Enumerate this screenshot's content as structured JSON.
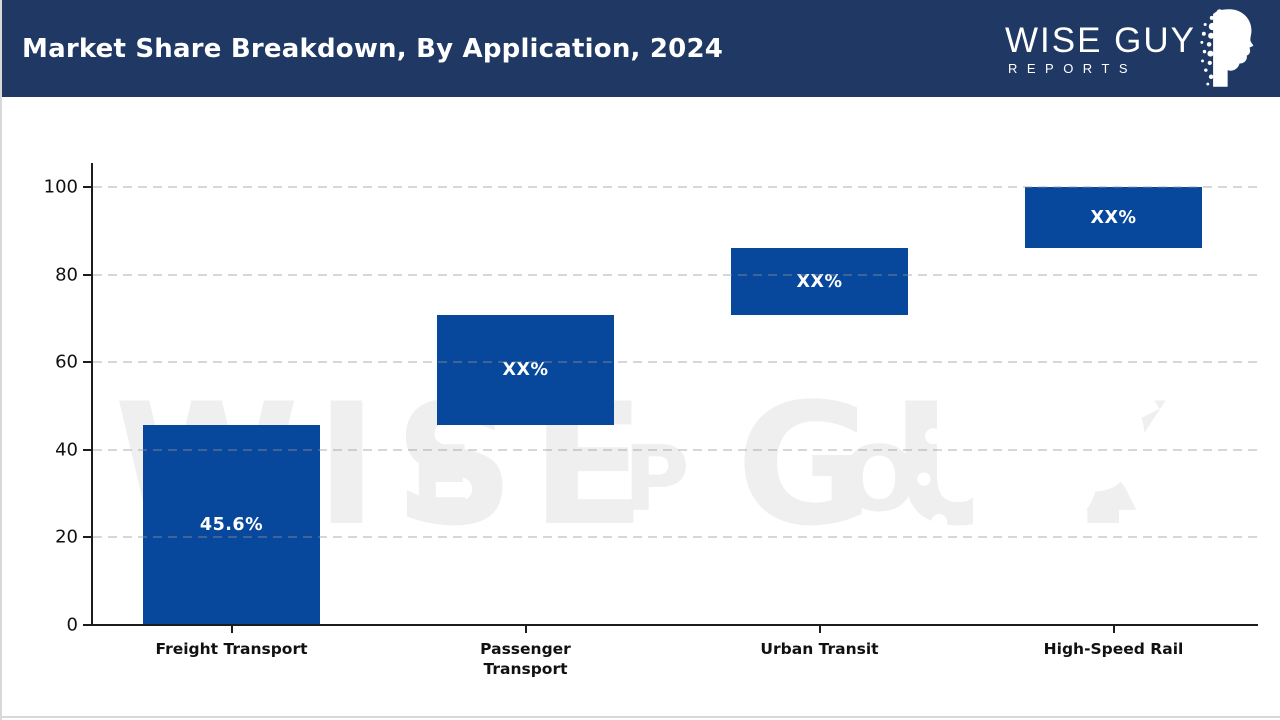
{
  "header": {
    "title": "Market Share Breakdown, By Application, 2024",
    "logo": {
      "line1": "WISE GUY",
      "line2": "REPORTS"
    }
  },
  "watermark": {
    "line1": "WISE GUY",
    "line2": "REPORTS",
    "face_icon": "dot-face-profile"
  },
  "colors": {
    "header_bg": "#1F3864",
    "bar_blue": "#07479C",
    "bar_label": "#FFFFFF",
    "axis": "#1C1C1C",
    "gridline_gray": "#D9D9D9",
    "watermark_gray": "#EFEFEF"
  },
  "chart_data": {
    "type": "bar",
    "subtype": "waterfall",
    "title": "Market Share Breakdown, By Application, 2024",
    "xlabel": "",
    "ylabel": "",
    "categories": [
      "Freight Transport",
      "Passenger Transport",
      "Urban Transit",
      "High-Speed Rail"
    ],
    "category_label_lines": [
      [
        "Freight Transport"
      ],
      [
        "Passenger",
        "Transport"
      ],
      [
        "Urban Transit"
      ],
      [
        "High-Speed Rail"
      ]
    ],
    "segments": [
      {
        "category": "Freight Transport",
        "start": 0,
        "end": 45.6,
        "label": "45.6%"
      },
      {
        "category": "Passenger Transport",
        "start": 45.6,
        "end": 70.7,
        "label": "XX%"
      },
      {
        "category": "Urban Transit",
        "start": 70.7,
        "end": 86.0,
        "label": "XX%"
      },
      {
        "category": "High-Speed Rail",
        "start": 86.0,
        "end": 100.0,
        "label": "XX%"
      }
    ],
    "yticks": [
      0,
      20,
      40,
      60,
      80,
      100
    ],
    "ylim": [
      0,
      105
    ],
    "grid": true,
    "grid_style": "dashed",
    "legend": false,
    "bar_color": "#07479C"
  }
}
